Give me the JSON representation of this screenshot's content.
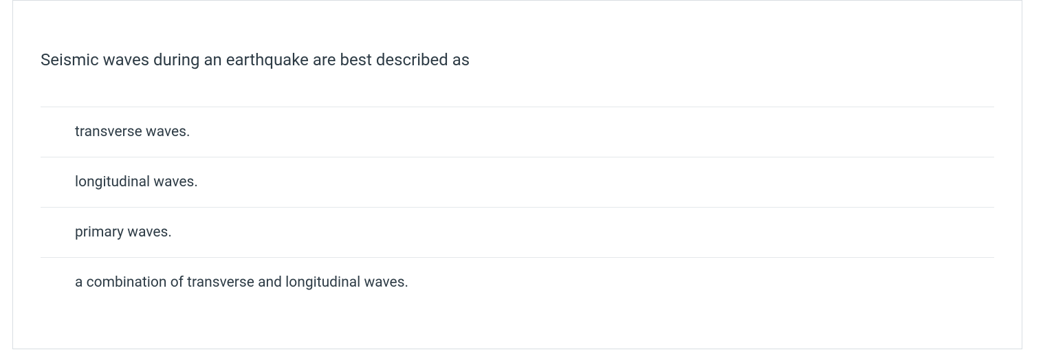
{
  "question": {
    "text": "Seismic waves during an earthquake are best described as",
    "text_color": "#2d3b45",
    "fontsize": 24
  },
  "answers": [
    {
      "label": "transverse waves."
    },
    {
      "label": "longitudinal waves."
    },
    {
      "label": "primary waves."
    },
    {
      "label": "a combination of transverse and longitudinal waves."
    }
  ],
  "styling": {
    "card_border_color": "#d8dde2",
    "divider_color": "#e4e8eb",
    "background_color": "#ffffff",
    "answer_fontsize": 21,
    "answer_text_color": "#2d3b45"
  }
}
